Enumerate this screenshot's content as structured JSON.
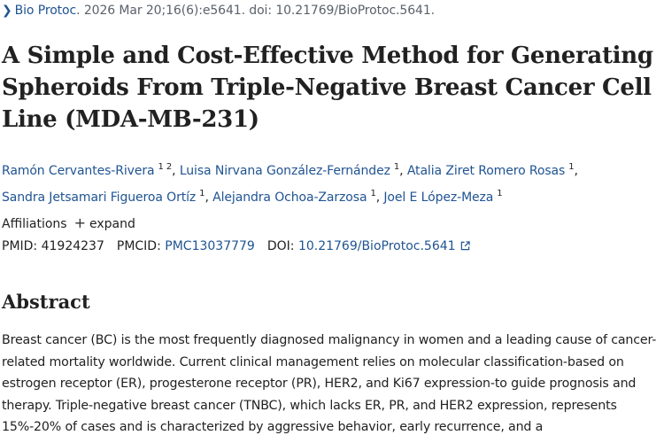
{
  "citation": {
    "journal": "Bio Protoc",
    "details": ". 2026 Mar 20;16(6):e5641. doi: 10.21769/BioProtoc.5641."
  },
  "article": {
    "title": "A Simple and Cost-Effective Method for Generating Spheroids From Triple-Negative Breast Cancer Cell Line (MDA-MB-231)"
  },
  "authors": [
    {
      "name": "Ramón Cervantes-Rivera",
      "affils": "1 2"
    },
    {
      "name": "Luisa Nirvana González-Fernández",
      "affils": "1"
    },
    {
      "name": "Atalia Ziret Romero Rosas",
      "affils": "1"
    },
    {
      "name": "Sandra Jetsamari Figueroa Ortíz",
      "affils": "1"
    },
    {
      "name": "Alejandra Ochoa-Zarzosa",
      "affils": "1"
    },
    {
      "name": "Joel E López-Meza",
      "affils": "1"
    }
  ],
  "affiliations": {
    "label": "Affiliations",
    "expand_label": "expand"
  },
  "identifiers": {
    "pmid_label": "PMID:",
    "pmid": "41924237",
    "pmcid_label": "PMCID:",
    "pmcid": "PMC13037779",
    "doi_label": "DOI:",
    "doi": "10.21769/BioProtoc.5641"
  },
  "abstract": {
    "heading": "Abstract",
    "text": "Breast cancer (BC) is the most frequently diagnosed malignancy in women and a leading cause of cancer-related mortality worldwide. Current clinical management relies on molecular classification-based on estrogen receptor (ER), progesterone receptor (PR), HER2, and Ki67 expression-to guide prognosis and therapy. Triple-negative breast cancer (TNBC), which lacks ER, PR, and HER2 expression, represents 15%-20% of cases and is characterized by aggressive behavior, early recurrence, and a"
  },
  "colors": {
    "link": "#205493",
    "text": "#212121",
    "muted": "#5b616b"
  }
}
